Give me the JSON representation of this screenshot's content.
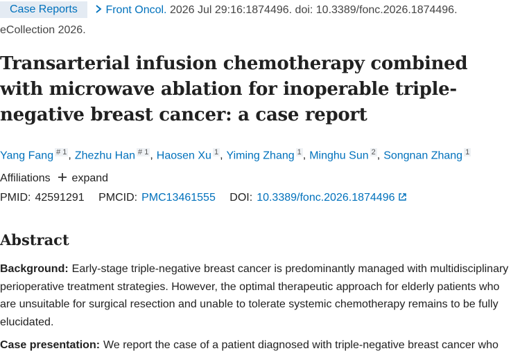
{
  "badge": "Case Reports",
  "citation": {
    "journal": "Front Oncol.",
    "details": "2026 Jul 29:16:1874496. doi: 10.3389/fonc.2026.1874496.",
    "ecollection": "eCollection 2026."
  },
  "title": "Transarterial infusion chemotherapy combined with microwave ablation for inoperable triple-negative breast cancer: a case report",
  "author_separator": ",",
  "authors": [
    {
      "name": "Yang Fang",
      "sup": "# 1"
    },
    {
      "name": "Zhezhu Han",
      "sup": "# 1"
    },
    {
      "name": "Haosen Xu",
      "sup": "1"
    },
    {
      "name": "Yiming Zhang",
      "sup": "1"
    },
    {
      "name": "Minghu Sun",
      "sup": "2"
    },
    {
      "name": "Songnan Zhang",
      "sup": "1"
    }
  ],
  "affiliations": {
    "label": "Affiliations",
    "toggle": "expand"
  },
  "ids": {
    "pmid_label": "PMID:",
    "pmid": "42591291",
    "pmcid_label": "PMCID:",
    "pmcid": "PMC13461555",
    "doi_label": "DOI:",
    "doi": "10.3389/fonc.2026.1874496"
  },
  "abstract": {
    "heading": "Abstract",
    "sections": [
      {
        "label": "Background:",
        "text": "Early-stage triple-negative breast cancer is predominantly managed with multidisciplinary perioperative treatment strategies. However, the optimal therapeutic approach for elderly patients who are unsuitable for surgical resection and unable to tolerate systemic chemotherapy remains to be fully elucidated."
      },
      {
        "label": "Case presentation:",
        "text": "We report the case of a patient diagnosed with triple-negative breast cancer who"
      }
    ]
  }
}
